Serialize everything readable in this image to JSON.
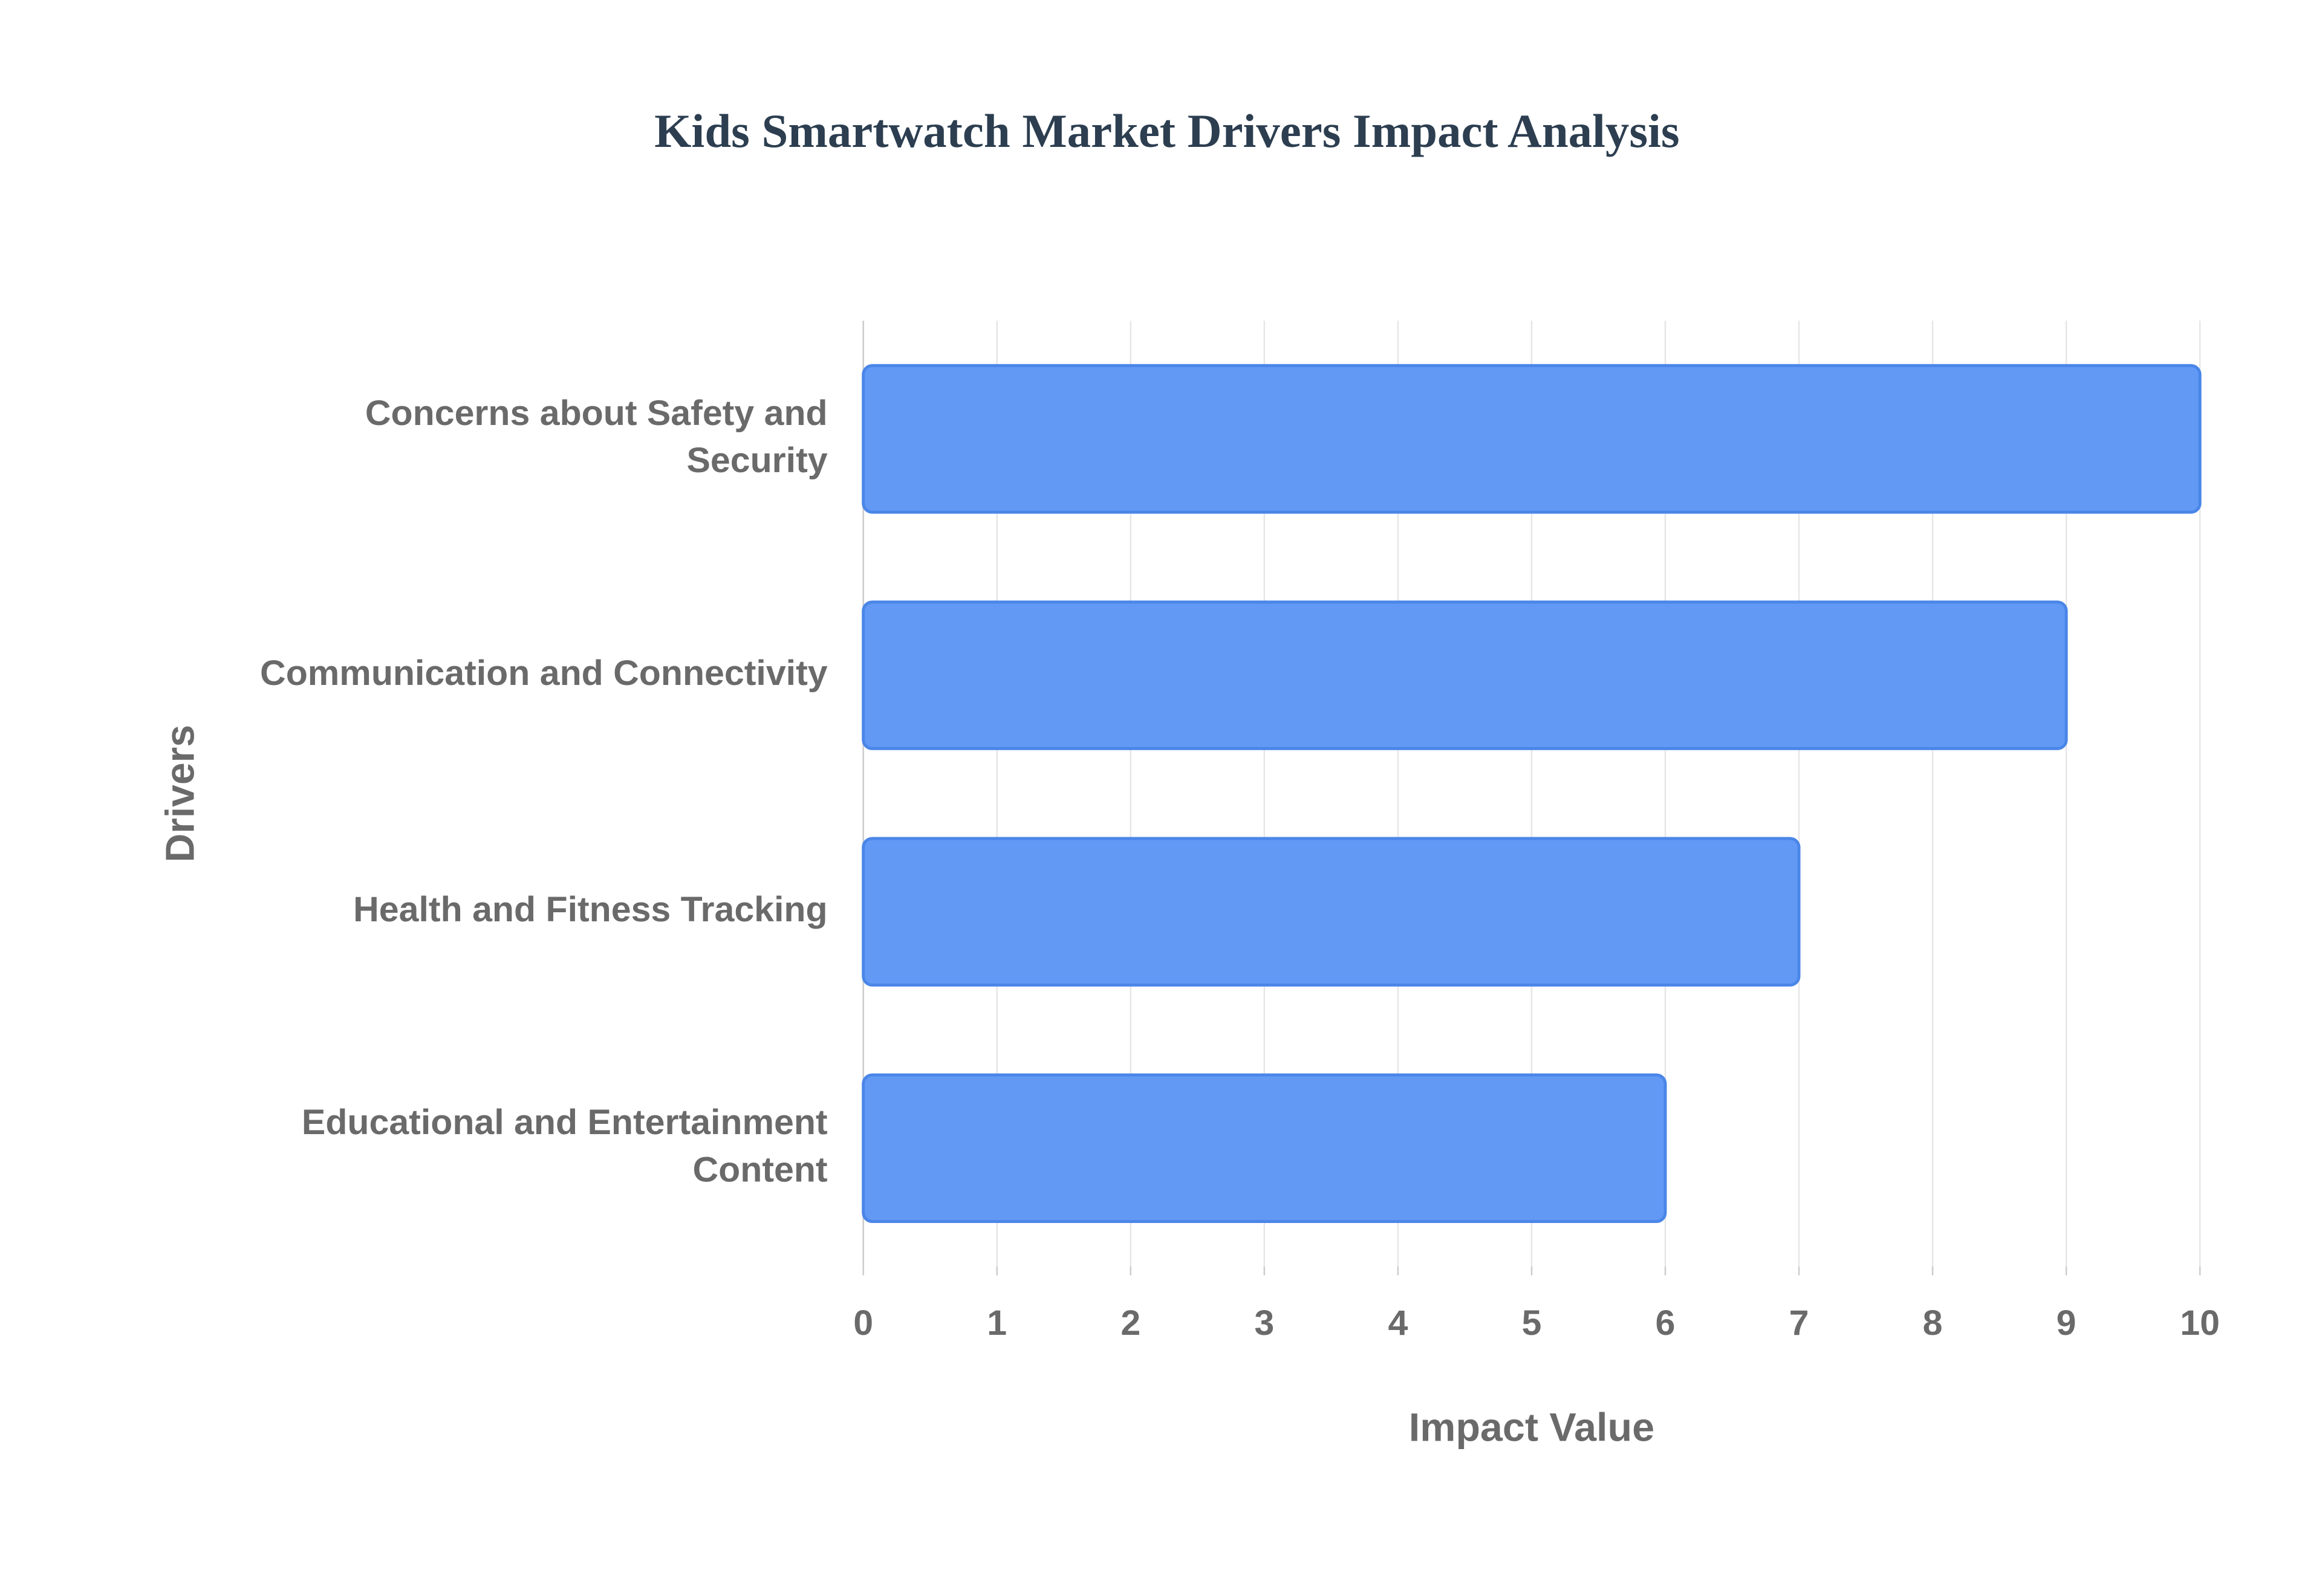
{
  "chart_data": {
    "type": "barh",
    "title": "Kids Smartwatch Market Drivers Impact Analysis",
    "x_label": "Impact Value",
    "y_label": "Drivers",
    "categories": [
      "Concerns about Safety and Security",
      "Communication and Connectivity",
      "Health and Fitness Tracking",
      "Educational and Entertainment Content"
    ],
    "values": [
      10,
      9,
      7,
      6
    ],
    "color": "#6199f5",
    "xlim": [
      0,
      10
    ],
    "xticks": [
      0,
      1,
      2,
      3,
      4,
      5,
      6,
      7,
      8,
      9,
      10
    ],
    "grid": true
  }
}
